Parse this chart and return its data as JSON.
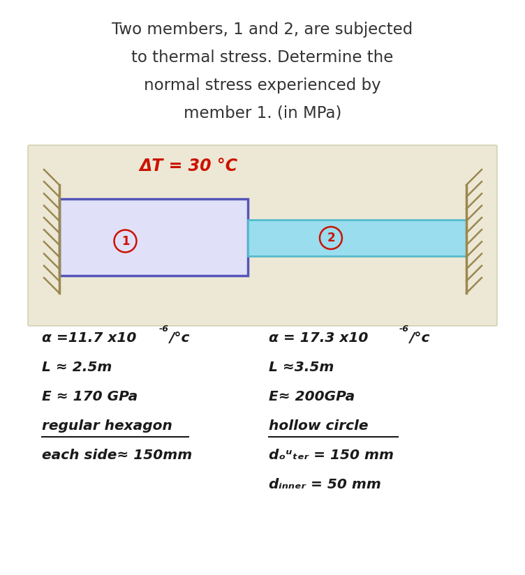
{
  "title_lines": [
    "Two members, 1 and 2, are subjected",
    "to thermal stress. Determine the",
    "normal stress experienced by",
    "member 1. (in MPa)"
  ],
  "bg_color": "#ede8d5",
  "outer_bg": "#ffffff",
  "delta_T_color": "#cc1100",
  "member1_fill": "#e0e0f8",
  "member1_border": "#5555bb",
  "member2_fill": "#99ddee",
  "member2_border": "#55bbcc",
  "wall_color": "#9a8850",
  "text_color": "#1a1a1a",
  "font_color": "#333333"
}
